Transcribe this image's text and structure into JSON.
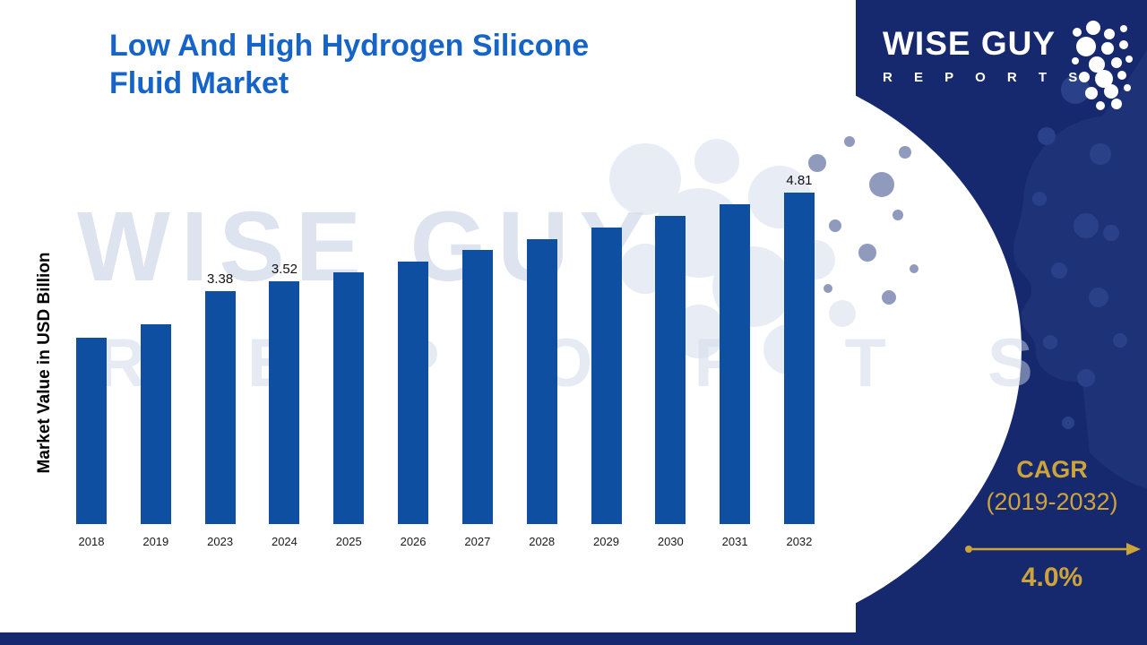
{
  "header": {
    "title_line1": "Low And High Hydrogen Silicone",
    "title_line2": "Fluid Market",
    "title_color": "#1664c8"
  },
  "chart_data": {
    "type": "bar",
    "title": "Low And High Hydrogen Silicone Fluid Market",
    "ylabel": "Market Value in USD Billion",
    "xlabel": "",
    "categories": [
      "2018",
      "2019",
      "2023",
      "2024",
      "2025",
      "2026",
      "2027",
      "2028",
      "2029",
      "2030",
      "2031",
      "2032"
    ],
    "values": [
      2.7,
      2.9,
      3.38,
      3.52,
      3.65,
      3.81,
      3.97,
      4.13,
      4.3,
      4.47,
      4.64,
      4.81
    ],
    "value_labels": {
      "2023": "3.38",
      "2024": "3.52",
      "2032": "4.81"
    },
    "bar_color": "#0e4fa1",
    "ylim": [
      0,
      5.2
    ],
    "grid": false,
    "legend": false
  },
  "brand": {
    "name_line1": "WISE GUY",
    "name_line2": "R E P O R T S",
    "panel_color": "#16296e"
  },
  "cagr": {
    "label": "CAGR",
    "range": "(2019-2032)",
    "value": "4.0%",
    "accent_color": "#cda43a"
  },
  "watermark": {
    "line1": "WISE GUY",
    "line2": "R E P O R T S"
  }
}
